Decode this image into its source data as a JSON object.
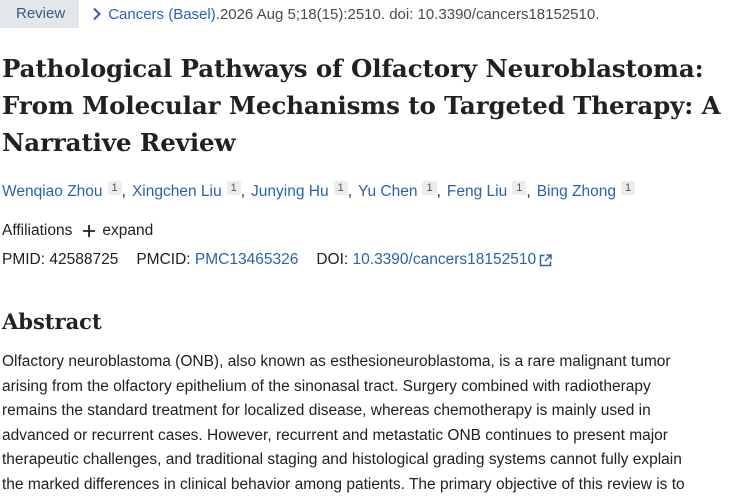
{
  "citation": {
    "type_badge": "Review",
    "journal": "Cancers (Basel).",
    "details": " 2026 Aug 5;18(15):2510. doi: 10.3390/cancers18152510."
  },
  "title": {
    "lines": [
      "Pathological Pathways of Olfactory Neuroblastoma:",
      "From Molecular Mechanisms to Targeted Therapy: A",
      "Narrative Review"
    ]
  },
  "authors": [
    {
      "name": "Wenqiao Zhou",
      "aff": "1"
    },
    {
      "name": "Xingchen Liu",
      "aff": "1"
    },
    {
      "name": "Junying Hu",
      "aff": "1"
    },
    {
      "name": "Yu Chen",
      "aff": "1"
    },
    {
      "name": "Feng Liu",
      "aff": "1"
    },
    {
      "name": "Bing Zhong",
      "aff": "1"
    }
  ],
  "author_separator": ",",
  "affiliations": {
    "label": "Affiliations",
    "expand_label": "expand"
  },
  "identifiers": {
    "pmid_label": "PMID:",
    "pmid": "42588725",
    "pmcid_label": "PMCID:",
    "pmcid": "PMC13465326",
    "doi_label": "DOI:",
    "doi": "10.3390/cancers18152510"
  },
  "abstract": {
    "heading": "Abstract",
    "lines": [
      "Olfactory neuroblastoma (ONB), also known as esthesioneuroblastoma, is a rare malignant tumor",
      "arising from the olfactory epithelium of the sinonasal tract. Surgery combined with radiotherapy",
      "remains the standard treatment for localized disease, whereas chemotherapy is mainly used in",
      "advanced or recurrent cases. However, recurrent and metastatic ONB continues to present major",
      "therapeutic challenges, and traditional staging and histological grading systems cannot fully explain",
      "the marked differences in clinical behavior among patients. The primary objective of this review is to"
    ]
  },
  "colors": {
    "link": "#2a62b0",
    "badge_bg": "#e4e7ea",
    "text": "#212121"
  },
  "icons": {
    "breadcrumb": "chevron-right-icon",
    "expand": "plus-icon",
    "external": "external-link-icon"
  }
}
